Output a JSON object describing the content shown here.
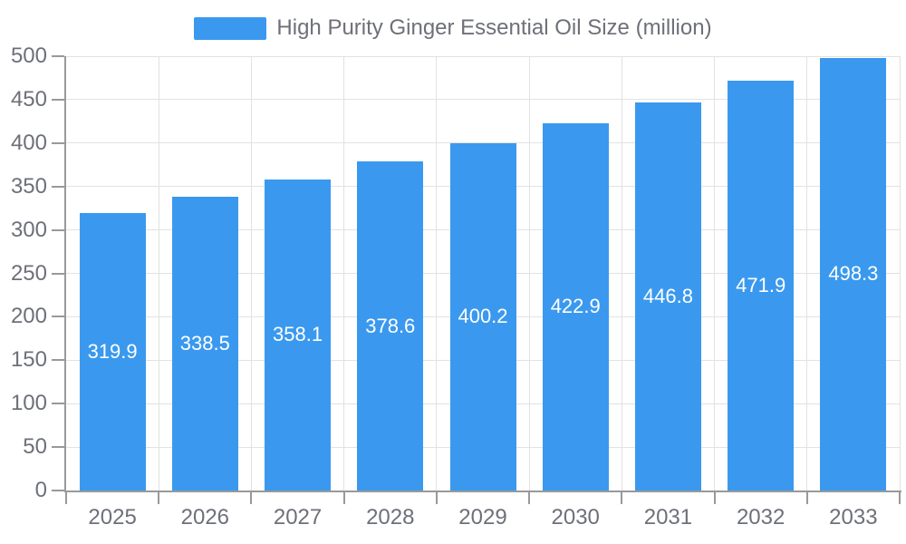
{
  "legend": {
    "label": "High Purity Ginger Essential Oil Size (million)"
  },
  "colors": {
    "bar": "#3a99ee",
    "grid": "#e2e2e2",
    "axis": "#999999",
    "text": "#6e7079",
    "value_label": "#ffffff",
    "background": "#ffffff"
  },
  "chart_data": {
    "type": "bar",
    "title": "High Purity Ginger Essential Oil Size (million)",
    "categories": [
      "2025",
      "2026",
      "2027",
      "2028",
      "2029",
      "2030",
      "2031",
      "2032",
      "2033"
    ],
    "values": [
      319.9,
      338.5,
      358.1,
      378.6,
      400.2,
      422.9,
      446.8,
      471.9,
      498.3
    ],
    "xlabel": "",
    "ylabel": "",
    "ylim": [
      0,
      500
    ],
    "ytick_step": 50,
    "grid": true,
    "legend_position": "top-center",
    "value_label_position": "inside-center"
  }
}
